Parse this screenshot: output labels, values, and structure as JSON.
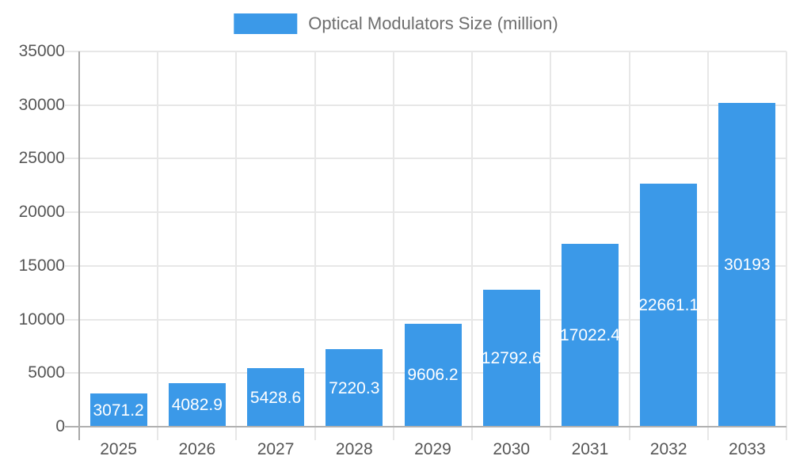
{
  "chart_data": {
    "type": "bar",
    "title": "Optical Modulators Size (million)",
    "categories": [
      "2025",
      "2026",
      "2027",
      "2028",
      "2029",
      "2030",
      "2031",
      "2032",
      "2033"
    ],
    "values": [
      3071.2,
      4082.9,
      5428.6,
      7220.3,
      9606.2,
      12792.6,
      17022.4,
      22661.1,
      30193
    ],
    "bar_labels": [
      "3071.2",
      "4082.9",
      "5428.6",
      "7220.3",
      "9606.2",
      "12792.6",
      "17022.4",
      "22661.1",
      "30193"
    ],
    "xlabel": "",
    "ylabel": "",
    "ylim": [
      0,
      35000
    ],
    "yticks": [
      0,
      5000,
      10000,
      15000,
      20000,
      25000,
      30000,
      35000
    ],
    "grid": true,
    "legend_position": "top-center",
    "bar_color": "#3B99E8",
    "bar_label_color": "#FFFFFF"
  },
  "colors": {
    "bar": "#3B99E8",
    "grid": "#E7E7E7",
    "axis": "#A8A8A8",
    "baseline": "#B0B0B0",
    "tick_text": "#565656",
    "legend_text": "#6E6E6E",
    "background": "#FFFFFF"
  }
}
